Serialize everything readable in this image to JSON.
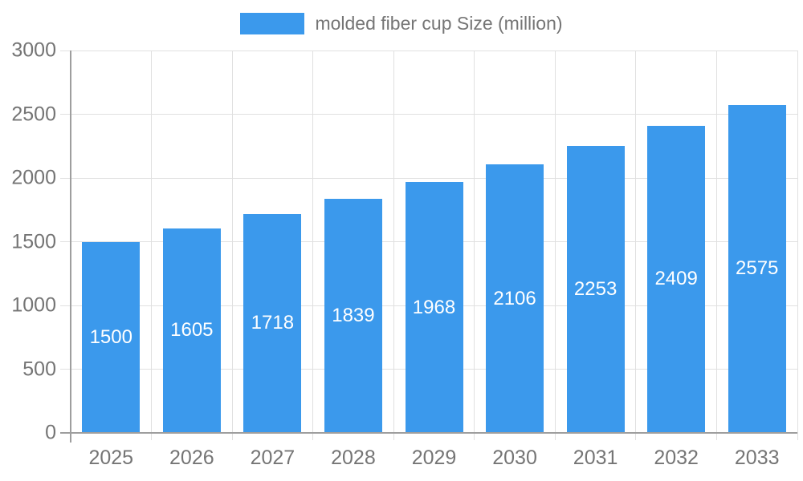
{
  "legend": {
    "label": "molded fiber cup Size (million)"
  },
  "chart_data": {
    "type": "bar",
    "title": "",
    "series_name": "molded fiber cup Size (million)",
    "categories": [
      "2025",
      "2026",
      "2027",
      "2028",
      "2029",
      "2030",
      "2031",
      "2032",
      "2033"
    ],
    "values": [
      1500,
      1605,
      1718,
      1839,
      1968,
      2106,
      2253,
      2409,
      2575
    ],
    "xlabel": "",
    "ylabel": "",
    "ylim": [
      0,
      3000
    ],
    "yticks": [
      0,
      500,
      1000,
      1500,
      2000,
      2500,
      3000
    ],
    "grid": true,
    "legend_position": "top",
    "bar_labels_shown": true,
    "colors": {
      "bar": "#3b99ec",
      "bar_label": "#ffffff",
      "axis_text": "#757575",
      "gridline": "#e0e0e0",
      "axis_line": "#9e9e9e",
      "background": "#ffffff"
    }
  }
}
